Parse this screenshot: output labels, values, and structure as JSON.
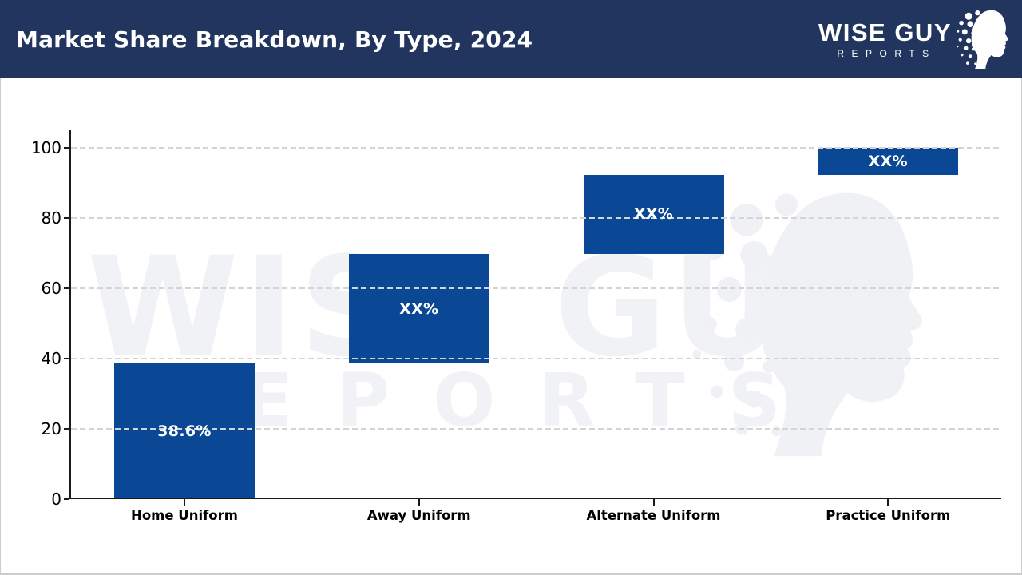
{
  "header": {
    "title": "Market Share Breakdown, By Type, 2024",
    "logo": {
      "wordmark": "WISE GUY",
      "subtext": "REPORTS",
      "face_icon": "dotted-head-profile"
    },
    "bg_color": "#21355e"
  },
  "watermark": {
    "line1": "WISE GU",
    "line2": "REPORTS",
    "face_icon": "dotted-head-profile",
    "color": "#f1f2f5"
  },
  "chart_data": {
    "type": "bar",
    "subtype": "floating-waterfall",
    "title": "Market Share Breakdown, By Type, 2024",
    "categories": [
      "Home Uniform",
      "Away Uniform",
      "Alternate Uniform",
      "Practice Uniform"
    ],
    "values": [
      38.6,
      31.2,
      22.5,
      7.7
    ],
    "cumulative": [
      [
        0,
        38.6
      ],
      [
        38.6,
        69.8
      ],
      [
        69.8,
        92.3
      ],
      [
        92.3,
        100
      ]
    ],
    "bar_labels": [
      "38.6%",
      "XX%",
      "XX%",
      "XX%"
    ],
    "xlabel": "",
    "ylabel": "",
    "ylim": [
      0,
      100
    ],
    "yticks": [
      0,
      20,
      40,
      60,
      80,
      100
    ],
    "grid": "horizontal-dashed",
    "legend": "none",
    "bar_color": "#0a4795",
    "bar_label_color": "#ffffff",
    "axis_color": "#1a1a1a",
    "gridline_color": "#d4d4d4"
  }
}
